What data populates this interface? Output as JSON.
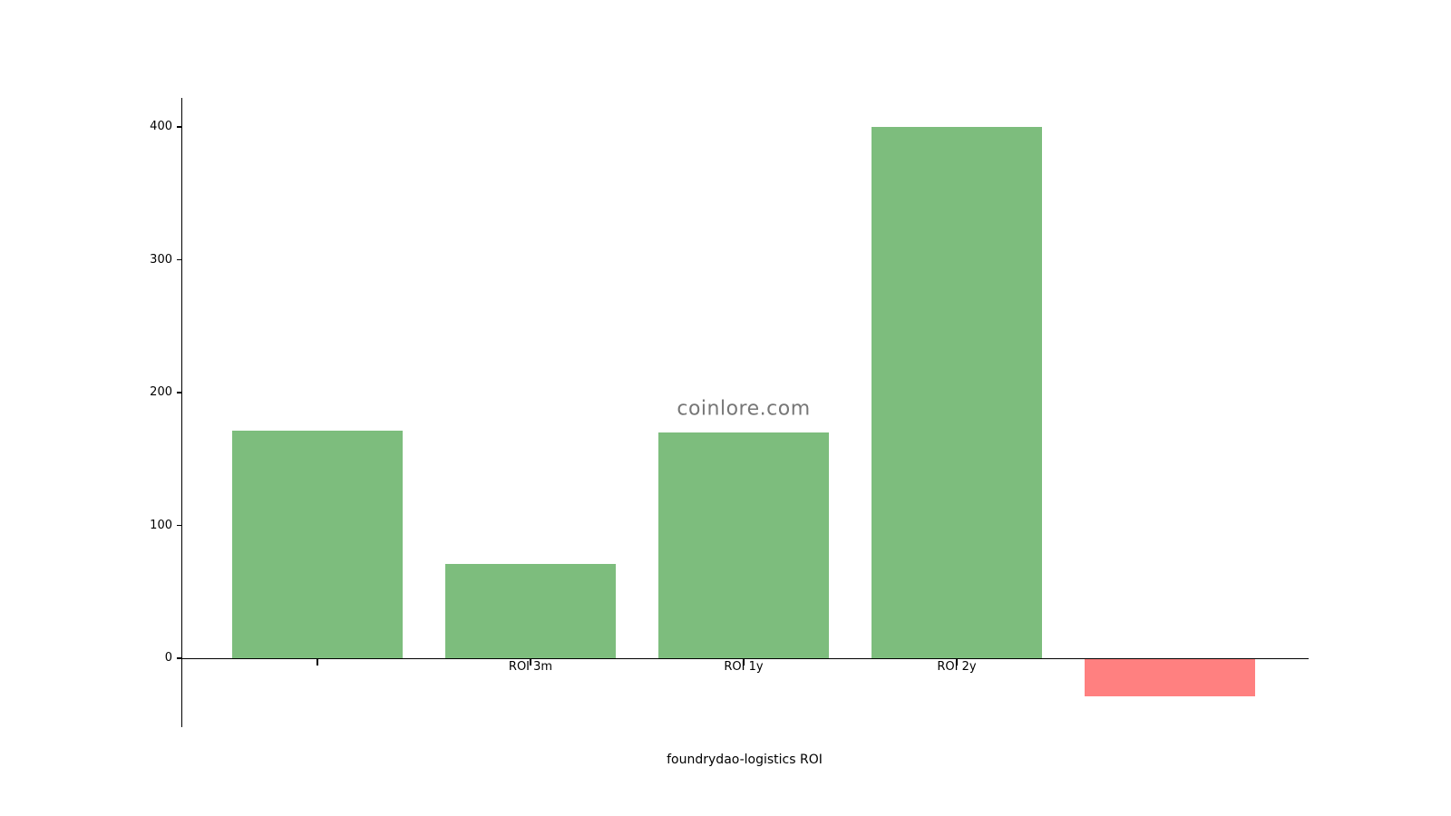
{
  "watermark": "coinlore.com",
  "chart_data": {
    "type": "bar",
    "title": "",
    "xlabel": "foundrydao-logistics ROI",
    "ylabel": "",
    "categories": [
      "",
      "ROI 3m",
      "ROI 1y",
      "ROI 2y",
      ""
    ],
    "values": [
      171,
      71,
      170,
      400,
      -29
    ],
    "bar_colors": [
      "#7dbd7d",
      "#7dbd7d",
      "#7dbd7d",
      "#7dbd7d",
      "#ff8080"
    ],
    "x_tick_marks": [
      true,
      true,
      true,
      true,
      false
    ],
    "yticks": [
      0,
      100,
      200,
      300,
      400
    ],
    "ylim": [
      -52,
      424
    ],
    "grid": false,
    "legend_position": "none",
    "positive_color": "#7dbd7d",
    "negative_color": "#ff8080",
    "axis_color": "#000000",
    "watermark_color": "#777777",
    "background_color": "#ffffff"
  }
}
